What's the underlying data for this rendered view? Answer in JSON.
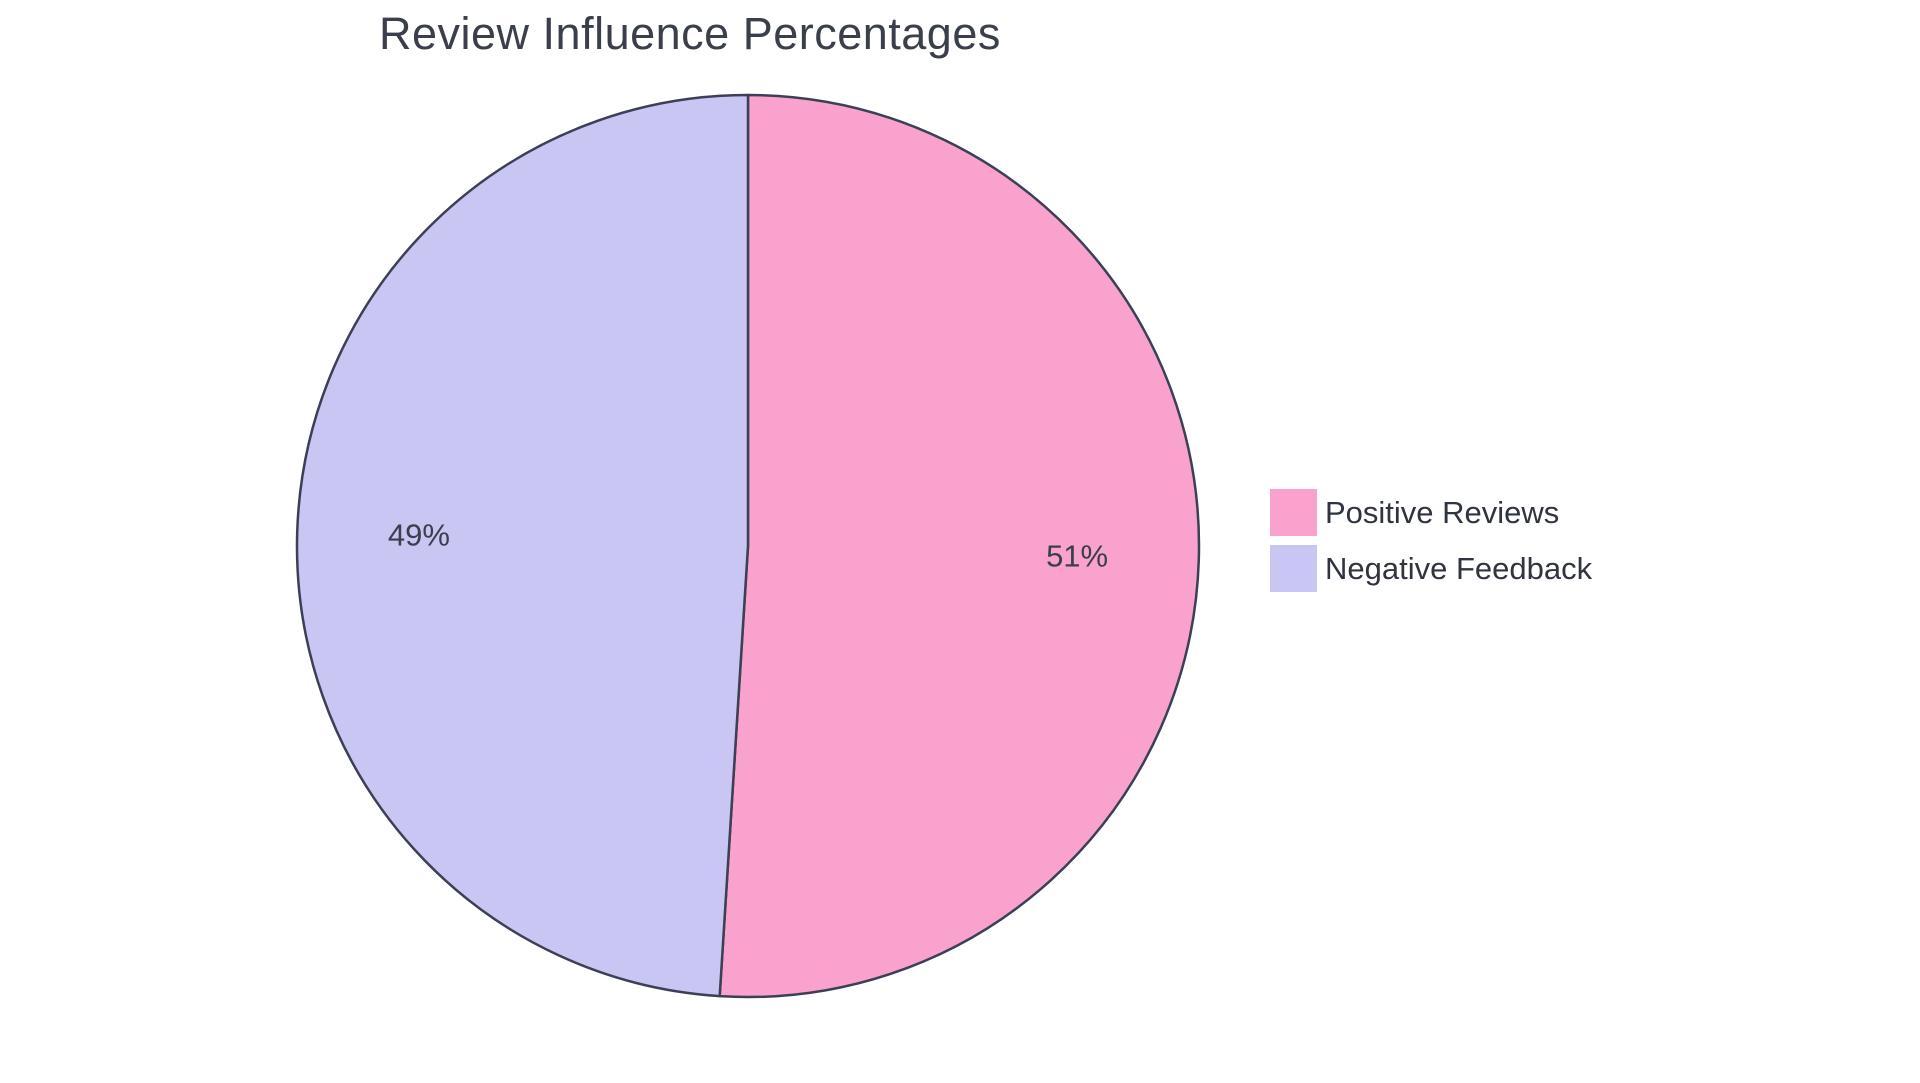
{
  "chart_data": {
    "type": "pie",
    "title": "Review Influence Percentages",
    "labels": [
      "Positive Reviews",
      "Negative Feedback"
    ],
    "values": [
      51,
      49
    ],
    "value_labels": [
      "51%",
      "49%"
    ],
    "colors": [
      "#F9A2CE",
      "#C9C6F4"
    ],
    "stroke_color": "#3B4054",
    "stroke_width": 2.5,
    "start_angle_deg": 0,
    "direction": "clockwise",
    "legend_position": "right",
    "label_radius_fraction": 0.73
  }
}
